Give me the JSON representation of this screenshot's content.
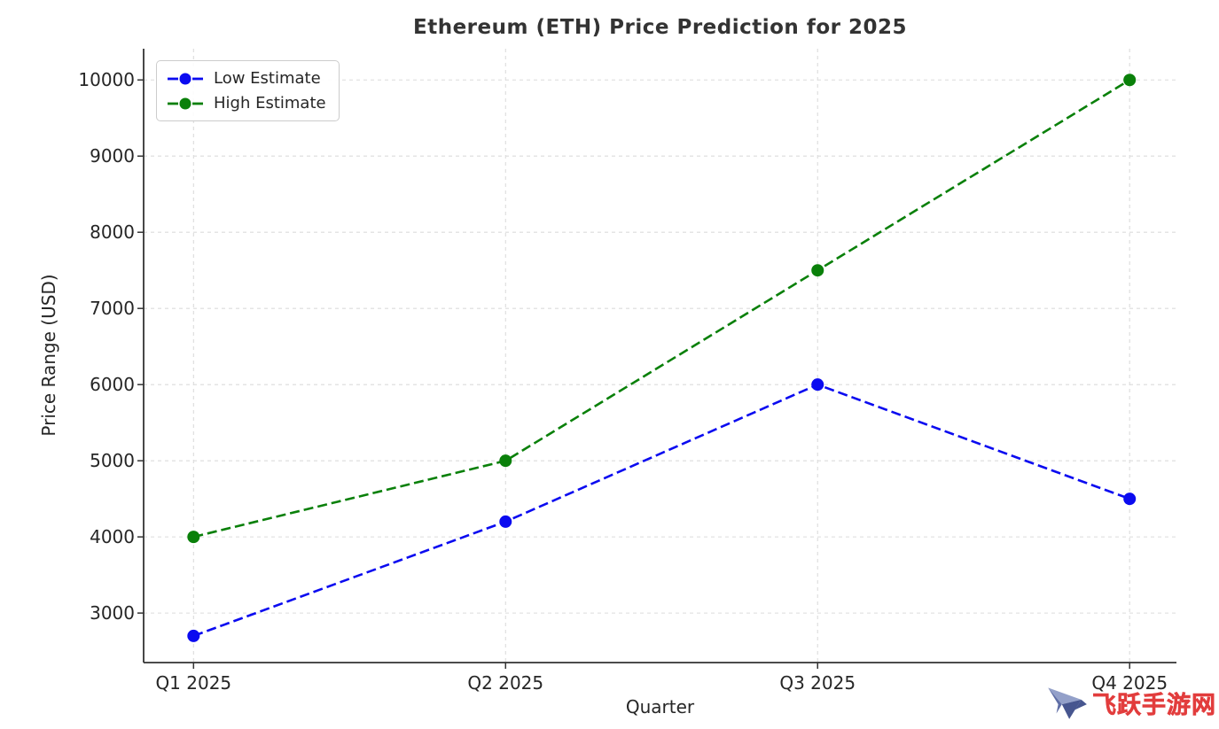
{
  "chart_data": {
    "type": "line",
    "title": "Ethereum (ETH) Price Prediction for 2025",
    "xlabel": "Quarter",
    "ylabel": "Price Range (USD)",
    "categories": [
      "Q1 2025",
      "Q2 2025",
      "Q3 2025",
      "Q4 2025"
    ],
    "series": [
      {
        "name": "Low Estimate",
        "color": "#0b0bf0",
        "linestyle": "dashed",
        "marker": "circle",
        "values": [
          2700,
          4200,
          6000,
          4500
        ]
      },
      {
        "name": "High Estimate",
        "color": "#0a800a",
        "linestyle": "dashed",
        "marker": "circle",
        "values": [
          4000,
          5000,
          7500,
          10000
        ]
      }
    ],
    "yticks": [
      3000,
      4000,
      5000,
      6000,
      7000,
      8000,
      9000,
      10000
    ],
    "ylim": [
      2350,
      10410
    ],
    "grid": true,
    "grid_style": "dashed-light-gray",
    "legend_position": "upper left",
    "background": "#ffffff"
  },
  "watermark": {
    "text": "飞跃手游网",
    "icon": "origami-bird-icon",
    "text_color": "#e23d3d",
    "icon_color": "#47568f"
  }
}
